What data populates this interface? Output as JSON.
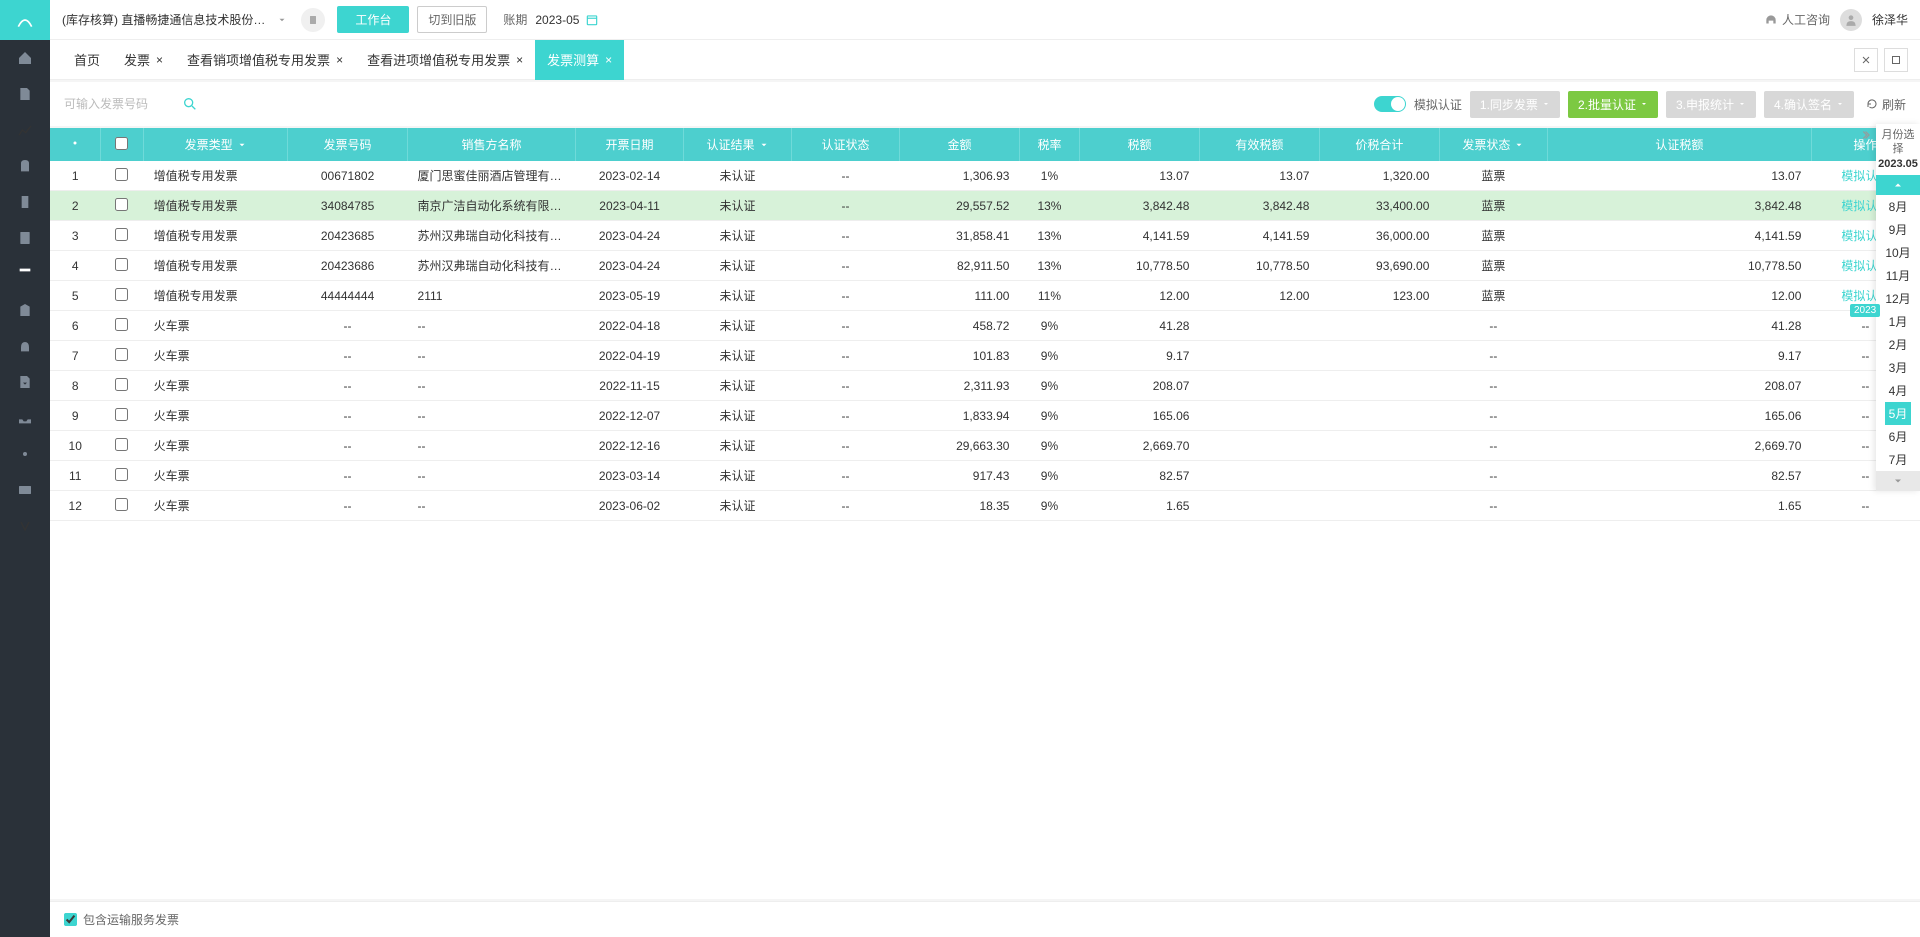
{
  "colors": {
    "teal": "#3dd5d0",
    "headerTeal": "#4dcfce",
    "green": "#7cc942",
    "rowHighlight": "#d7f2d9",
    "disabled": "#d8d8d8"
  },
  "topbar": {
    "company": "(库存核算) 直播畅捷通信息技术股份…",
    "workspace": "工作台",
    "switchOld": "切到旧版",
    "periodLabel": "账期",
    "periodValue": "2023-05",
    "consult": "人工咨询",
    "userName": "徐泽华"
  },
  "tabs": [
    {
      "label": "首页",
      "closable": false,
      "active": false
    },
    {
      "label": "发票",
      "closable": true,
      "active": false
    },
    {
      "label": "查看销项增值税专用发票",
      "closable": true,
      "active": false
    },
    {
      "label": "查看进项增值税专用发票",
      "closable": true,
      "active": false
    },
    {
      "label": "发票测算",
      "closable": true,
      "active": true
    }
  ],
  "toolbar": {
    "searchPlaceholder": "可输入发票号码",
    "toggleLabel": "模拟认证",
    "step1": "1.同步发票",
    "step2": "2.批量认证",
    "step3": "3.申报统计",
    "step4": "4.确认签名",
    "refresh": "刷新"
  },
  "columns": {
    "type": "发票类型",
    "no": "发票号码",
    "seller": "销售方名称",
    "date": "开票日期",
    "result": "认证结果",
    "status": "认证状态",
    "amount": "金额",
    "rate": "税率",
    "tax": "税额",
    "effTax": "有效税额",
    "total": "价税合计",
    "invStatus": "发票状态",
    "certTax": "认证税额",
    "op": "操作"
  },
  "rows": [
    {
      "idx": 1,
      "type": "增值税专用发票",
      "no": "00671802",
      "seller": "厦门思蜜佳丽酒店管理有限…",
      "date": "2023-02-14",
      "result": "未认证",
      "status": "--",
      "amount": "1,306.93",
      "rate": "1%",
      "tax": "13.07",
      "effTax": "13.07",
      "total": "1,320.00",
      "invStatus": "蓝票",
      "certTax": "13.07",
      "op": "模拟认证",
      "highlight": false
    },
    {
      "idx": 2,
      "type": "增值税专用发票",
      "no": "34084785",
      "seller": "南京广洁自动化系统有限责…",
      "date": "2023-04-11",
      "result": "未认证",
      "status": "--",
      "amount": "29,557.52",
      "rate": "13%",
      "tax": "3,842.48",
      "effTax": "3,842.48",
      "total": "33,400.00",
      "invStatus": "蓝票",
      "certTax": "3,842.48",
      "op": "模拟认证",
      "highlight": true
    },
    {
      "idx": 3,
      "type": "增值税专用发票",
      "no": "20423685",
      "seller": "苏州汉弗瑞自动化科技有限…",
      "date": "2023-04-24",
      "result": "未认证",
      "status": "--",
      "amount": "31,858.41",
      "rate": "13%",
      "tax": "4,141.59",
      "effTax": "4,141.59",
      "total": "36,000.00",
      "invStatus": "蓝票",
      "certTax": "4,141.59",
      "op": "模拟认证",
      "highlight": false
    },
    {
      "idx": 4,
      "type": "增值税专用发票",
      "no": "20423686",
      "seller": "苏州汉弗瑞自动化科技有限…",
      "date": "2023-04-24",
      "result": "未认证",
      "status": "--",
      "amount": "82,911.50",
      "rate": "13%",
      "tax": "10,778.50",
      "effTax": "10,778.50",
      "total": "93,690.00",
      "invStatus": "蓝票",
      "certTax": "10,778.50",
      "op": "模拟认证",
      "highlight": false
    },
    {
      "idx": 5,
      "type": "增值税专用发票",
      "no": "44444444",
      "seller": "2111",
      "date": "2023-05-19",
      "result": "未认证",
      "status": "--",
      "amount": "111.00",
      "rate": "11%",
      "tax": "12.00",
      "effTax": "12.00",
      "total": "123.00",
      "invStatus": "蓝票",
      "certTax": "12.00",
      "op": "模拟认证",
      "highlight": false
    },
    {
      "idx": 6,
      "type": "火车票",
      "no": "--",
      "seller": "--",
      "date": "2022-04-18",
      "result": "未认证",
      "status": "--",
      "amount": "458.72",
      "rate": "9%",
      "tax": "41.28",
      "effTax": "",
      "total": "",
      "invStatus": "--",
      "certTax": "41.28",
      "op": "--",
      "highlight": false
    },
    {
      "idx": 7,
      "type": "火车票",
      "no": "--",
      "seller": "--",
      "date": "2022-04-19",
      "result": "未认证",
      "status": "--",
      "amount": "101.83",
      "rate": "9%",
      "tax": "9.17",
      "effTax": "",
      "total": "",
      "invStatus": "--",
      "certTax": "9.17",
      "op": "--",
      "highlight": false
    },
    {
      "idx": 8,
      "type": "火车票",
      "no": "--",
      "seller": "--",
      "date": "2022-11-15",
      "result": "未认证",
      "status": "--",
      "amount": "2,311.93",
      "rate": "9%",
      "tax": "208.07",
      "effTax": "",
      "total": "",
      "invStatus": "--",
      "certTax": "208.07",
      "op": "--",
      "highlight": false
    },
    {
      "idx": 9,
      "type": "火车票",
      "no": "--",
      "seller": "--",
      "date": "2022-12-07",
      "result": "未认证",
      "status": "--",
      "amount": "1,833.94",
      "rate": "9%",
      "tax": "165.06",
      "effTax": "",
      "total": "",
      "invStatus": "--",
      "certTax": "165.06",
      "op": "--",
      "highlight": false
    },
    {
      "idx": 10,
      "type": "火车票",
      "no": "--",
      "seller": "--",
      "date": "2022-12-16",
      "result": "未认证",
      "status": "--",
      "amount": "29,663.30",
      "rate": "9%",
      "tax": "2,669.70",
      "effTax": "",
      "total": "",
      "invStatus": "--",
      "certTax": "2,669.70",
      "op": "--",
      "highlight": false
    },
    {
      "idx": 11,
      "type": "火车票",
      "no": "--",
      "seller": "--",
      "date": "2023-03-14",
      "result": "未认证",
      "status": "--",
      "amount": "917.43",
      "rate": "9%",
      "tax": "82.57",
      "effTax": "",
      "total": "",
      "invStatus": "--",
      "certTax": "82.57",
      "op": "--",
      "highlight": false
    },
    {
      "idx": 12,
      "type": "火车票",
      "no": "--",
      "seller": "--",
      "date": "2023-06-02",
      "result": "未认证",
      "status": "--",
      "amount": "18.35",
      "rate": "9%",
      "tax": "1.65",
      "effTax": "",
      "total": "",
      "invStatus": "--",
      "certTax": "1.65",
      "op": "--",
      "highlight": false
    }
  ],
  "footer": {
    "includeTransport": "包含运输服务发票",
    "checked": true
  },
  "monthPanel": {
    "title": "月份选择",
    "year": "2023.05",
    "badge": "2023",
    "months": [
      "8月",
      "9月",
      "10月",
      "11月",
      "12月",
      "1月",
      "2月",
      "3月",
      "4月",
      "5月",
      "6月",
      "7月"
    ],
    "selectedIndex": 9
  }
}
